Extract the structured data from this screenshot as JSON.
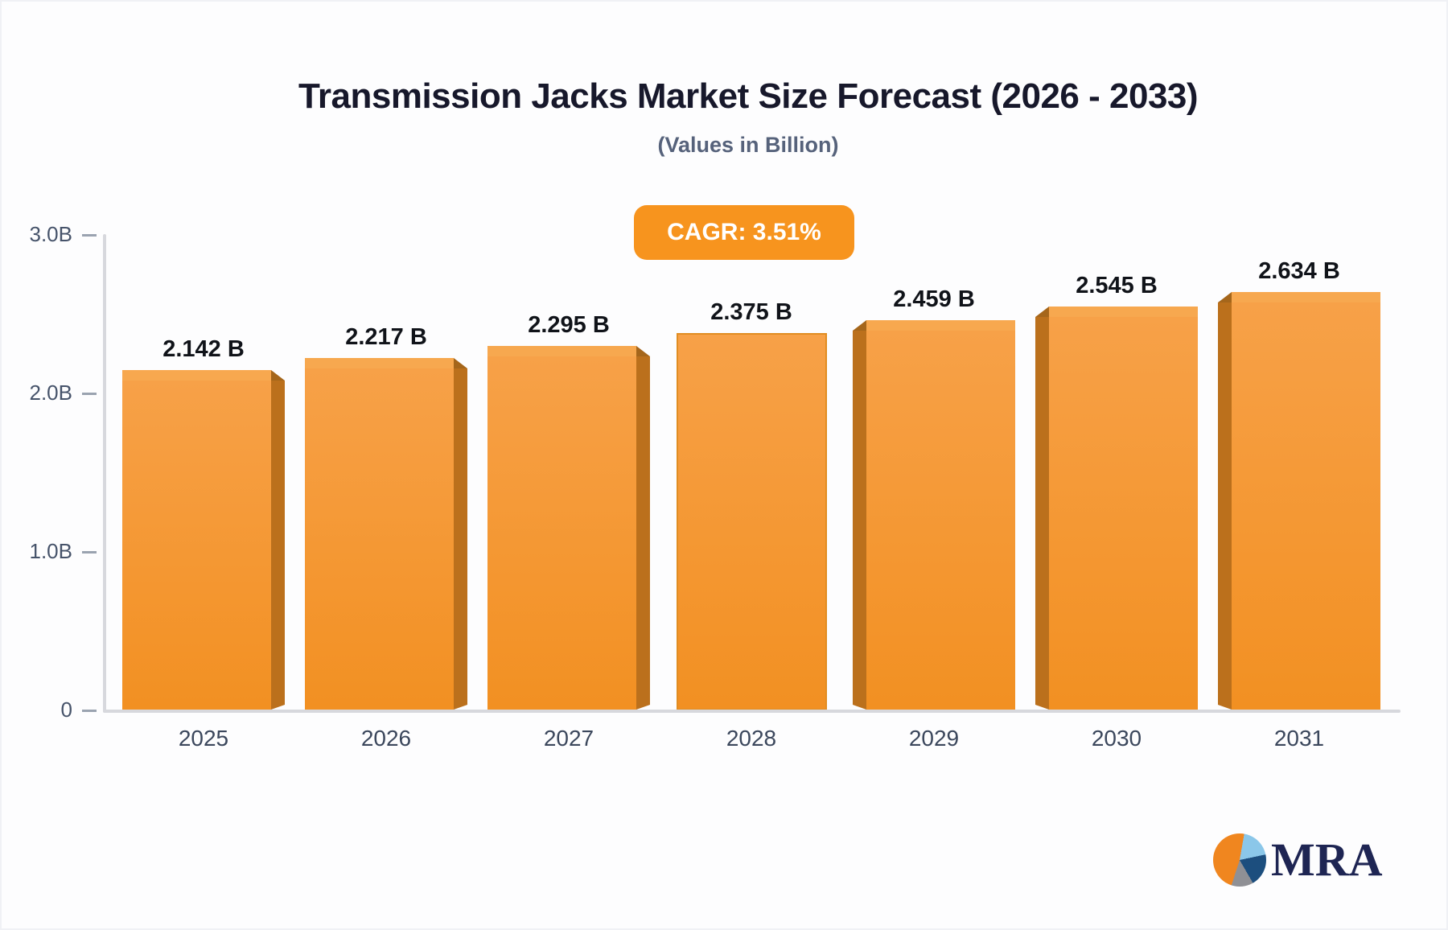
{
  "header": {
    "title": "Transmission Jacks Market Size Forecast (2026 - 2033)",
    "subtitle": "(Values in Billion)"
  },
  "badge": {
    "label": "CAGR: 3.51%",
    "bg": "#f7941e",
    "text_color": "#ffffff"
  },
  "chart_data": {
    "type": "bar",
    "title": "Transmission Jacks Market Size Forecast (2026 - 2033)",
    "subtitle": "(Values in Billion)",
    "cagr_label": "CAGR: 3.51%",
    "categories": [
      "2025",
      "2026",
      "2027",
      "2028",
      "2029",
      "2030",
      "2031"
    ],
    "values": [
      2.142,
      2.217,
      2.295,
      2.375,
      2.459,
      2.545,
      2.634
    ],
    "value_labels": [
      "2.142 B",
      "2.217 B",
      "2.295 B",
      "2.375 B",
      "2.459 B",
      "2.545 B",
      "2.634 B"
    ],
    "ylim": [
      0,
      3.0
    ],
    "yticks": [
      {
        "label": "0",
        "value": 0
      },
      {
        "label": "1.0B",
        "value": 1
      },
      {
        "label": "2.0B",
        "value": 2
      },
      {
        "label": "3.0B",
        "value": 3
      }
    ],
    "grid": false,
    "legend": false,
    "bar_style": "3d-perspective-center",
    "colors": {
      "front_top": "#f7a148",
      "front_bottom": "#f29022",
      "top_face": "#f7a84f",
      "side_face": "#bb701c",
      "chamfer": "#a5661b",
      "flat_outline": "#e18d22",
      "axis": "#d7d8dd",
      "tick": "#9aa3b0",
      "tick_label": "#46536a",
      "x_label": "#3b475c",
      "value_label": "#101319"
    }
  },
  "logo": {
    "text": "MRA",
    "text_color": "#1e2553",
    "pie_colors": {
      "orange": "#f0861f",
      "light_blue": "#8bc7e9",
      "navy": "#1c4e7e",
      "gray": "#8f9095"
    }
  }
}
